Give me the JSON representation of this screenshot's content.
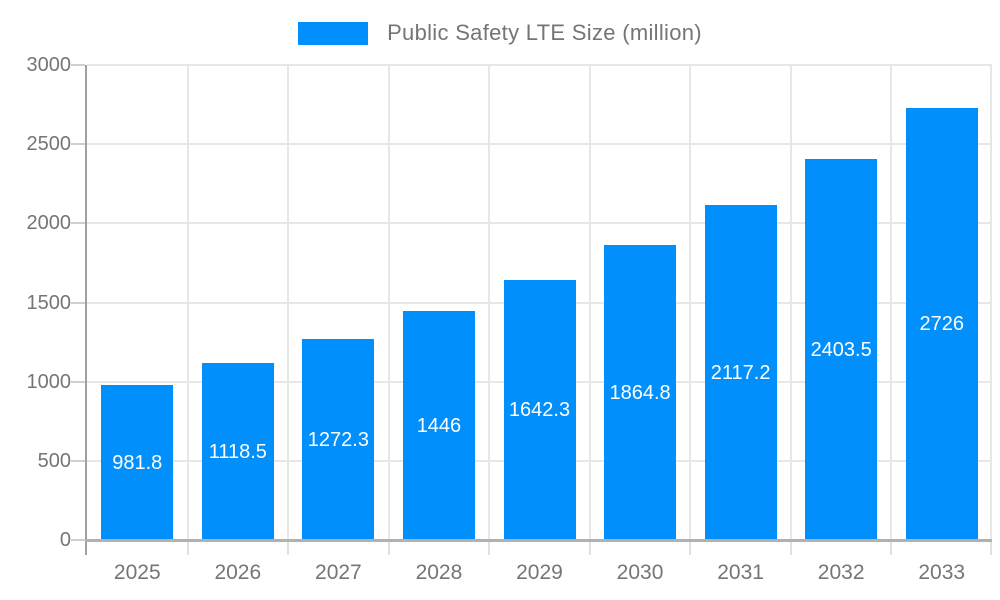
{
  "legend": {
    "position": "top"
  },
  "colors": {
    "bar": "#008FFB",
    "grid": "#e7e7e7",
    "axis_line": "#a0a0a0",
    "baseline": "#b1b1b1",
    "tick": "#cfcfcf",
    "axis_label_text": "#757575",
    "bar_label_text": "#ffffff",
    "background": "#ffffff"
  },
  "chart_data": {
    "type": "bar",
    "title": "Public Safety LTE Size (million)",
    "series_name": "Public Safety LTE Size (million)",
    "categories": [
      "2025",
      "2026",
      "2027",
      "2028",
      "2029",
      "2030",
      "2031",
      "2032",
      "2033"
    ],
    "values": [
      981.8,
      1118.5,
      1272.3,
      1446,
      1642.3,
      1864.8,
      2117.2,
      2403.5,
      2726
    ],
    "value_labels": [
      "981.8",
      "1118.5",
      "1272.3",
      "1446",
      "1642.3",
      "1864.8",
      "2117.2",
      "2403.5",
      "2726"
    ],
    "xlabel": "",
    "ylabel": "",
    "ylim": [
      0,
      3000
    ],
    "ytick_interval": 500,
    "yticks": [
      "0",
      "500",
      "1000",
      "1500",
      "2000",
      "2500",
      "3000"
    ],
    "grid": true,
    "legend_position": "top",
    "data_labels": "inside-center-white"
  }
}
